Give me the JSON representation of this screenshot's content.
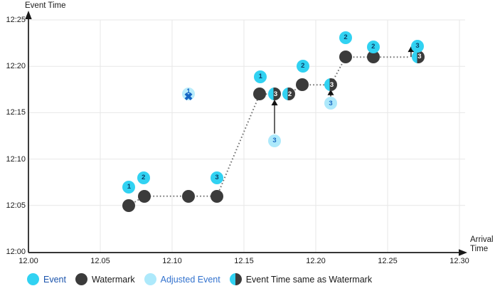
{
  "axis": {
    "y_title": "Event Time",
    "x_title_line1": "Arrival",
    "x_title_line2": "Time"
  },
  "legend": {
    "items": [
      {
        "label": "Event"
      },
      {
        "label": "Watermark"
      },
      {
        "label": "Adjusted Event"
      },
      {
        "label": "Event Time same as Watermark"
      }
    ]
  },
  "icons": {
    "dropped_x_glyph": "✖"
  },
  "colors": {
    "event": "#31d2f2",
    "watermark": "#3b3b3b",
    "adjusted_event": "#ade9fb",
    "event_number": "#0a3d66",
    "adjusted_number": "#1767c0",
    "half_number": "#ffffff",
    "dropped_x": "#1565c4",
    "legend_blue": "#1a53ac",
    "legend_light_blue": "#3272ce",
    "grid": "#e7e7e7",
    "dotted_line": "#707070",
    "arrow": "#555555",
    "axis": "#1a1a1a"
  },
  "chart_data": {
    "type": "scatter",
    "xlabel": "Arrival Time",
    "ylabel": "Event Time",
    "x_ticks": [
      "12.00",
      "12.05",
      "12.10",
      "12.15",
      "12.20",
      "12.25",
      "12.30"
    ],
    "y_ticks": [
      "12:00",
      "12:05",
      "12:10",
      "12:15",
      "12:20",
      "12:25"
    ],
    "x_axis_minutes_range": [
      0,
      30
    ],
    "y_axis_minutes_range": [
      0,
      25
    ],
    "grid": true,
    "legend_position": "bottom",
    "events": [
      {
        "label": "1",
        "arrival": "12.07",
        "event_time": "12:07",
        "a": 7,
        "t": 7
      },
      {
        "label": "2",
        "arrival": "12.08",
        "event_time": "12:08",
        "a": 8,
        "t": 8
      },
      {
        "label": "3",
        "arrival": "12.13",
        "event_time": "12:08",
        "a": 13.12,
        "t": 8
      },
      {
        "label": "1",
        "arrival": "12.16",
        "event_time": "12:19",
        "a": 16.15,
        "t": 18.9
      },
      {
        "label": "2",
        "arrival": "12.19",
        "event_time": "12:20",
        "a": 19.1,
        "t": 20
      },
      {
        "label": "2",
        "arrival": "12.22",
        "event_time": "12:23",
        "a": 22.08,
        "t": 23.1
      },
      {
        "label": "2",
        "arrival": "12.24",
        "event_time": "12:22",
        "a": 24,
        "t": 22.1
      },
      {
        "label": "3",
        "arrival": "12.27",
        "event_time": "12:22",
        "a": 27.08,
        "t": 22.2
      }
    ],
    "watermarks": [
      {
        "arrival": "12.07",
        "event_time": "12:05",
        "a": 7,
        "t": 5
      },
      {
        "arrival": "12.08",
        "event_time": "12:06",
        "a": 8.07,
        "t": 6
      },
      {
        "arrival": "12.11",
        "event_time": "12:06",
        "a": 11.14,
        "t": 6
      },
      {
        "arrival": "12.13",
        "event_time": "12:06",
        "a": 13.12,
        "t": 6
      },
      {
        "arrival": "12.16",
        "event_time": "12:17",
        "a": 16.1,
        "t": 17
      },
      {
        "arrival": "12.19",
        "event_time": "12:18",
        "a": 19.05,
        "t": 18
      },
      {
        "arrival": "12.22",
        "event_time": "12:21",
        "a": 22.08,
        "t": 21
      },
      {
        "arrival": "12.24",
        "event_time": "12:21",
        "a": 24,
        "t": 21
      }
    ],
    "watermark_path": [
      [
        7,
        5
      ],
      [
        8.07,
        6
      ],
      [
        11.14,
        6
      ],
      [
        13.12,
        6
      ],
      [
        16.1,
        17
      ],
      [
        17.13,
        17
      ],
      [
        18.12,
        17
      ],
      [
        19.05,
        18
      ],
      [
        21.04,
        18
      ],
      [
        22.08,
        21
      ],
      [
        24,
        21
      ],
      [
        26.5,
        21
      ]
    ],
    "same_as_watermark": [
      {
        "label": "3",
        "arrival": "12.17",
        "event_time": "12:17",
        "a": 17.13,
        "t": 17
      },
      {
        "label": "2",
        "arrival": "12.18",
        "event_time": "12:17",
        "a": 18.12,
        "t": 17
      },
      {
        "label": "3",
        "arrival": "12.21",
        "event_time": "12:18",
        "a": 21.04,
        "t": 18
      },
      {
        "label": "3",
        "arrival": "12.27",
        "event_time": "12:21",
        "a": 27.15,
        "t": 21
      }
    ],
    "adjusted_events": [
      {
        "label": "3",
        "arrival": "12.17",
        "original_event_time": "12:12",
        "a": 17.13,
        "t": 12
      },
      {
        "label": "3",
        "arrival": "12.21",
        "original_event_time": "12:16",
        "a": 21.04,
        "t": 16
      }
    ],
    "dropped_events": [
      {
        "label": "1",
        "arrival": "12.11",
        "event_time": "12:17",
        "a": 11.14,
        "t": 17
      }
    ],
    "adjust_arrows": [
      {
        "a": 17.13,
        "t1": 12.75,
        "t2": 16.4
      },
      {
        "a": 21.04,
        "t1": 16.75,
        "t2": 17.5
      },
      {
        "a": 26.63,
        "t1": 21.0,
        "t2": 22.15
      }
    ]
  }
}
